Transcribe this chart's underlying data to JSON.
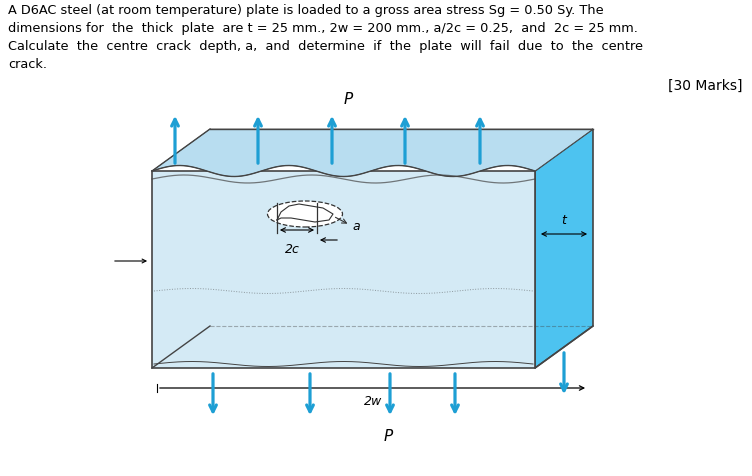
{
  "plate_face_color": "#d4eaf5",
  "plate_top_color": "#b8ddf0",
  "plate_side_color": "#4dc3f0",
  "plate_edge_color": "#444444",
  "arrow_color": "#1e9fd4",
  "crack_color": "#333333",
  "bg_color": "#ffffff",
  "text_line1": "A D6AC steel (at room temperature) plate is loaded to a gross area stress Sg = 0.50 Sy. The",
  "text_line2": "dimensions for  the  thick  plate  are t = 25 mm., 2w = 200 mm., a/2c = 0.25,  and  2c = 25 mm.",
  "text_line3": "Calculate  the  centre  crack  depth, a,  and  determine  if  the  plate  will  fail  due  to  the  centre",
  "text_line4": "crack.",
  "marks_text": "[30 Marks]"
}
